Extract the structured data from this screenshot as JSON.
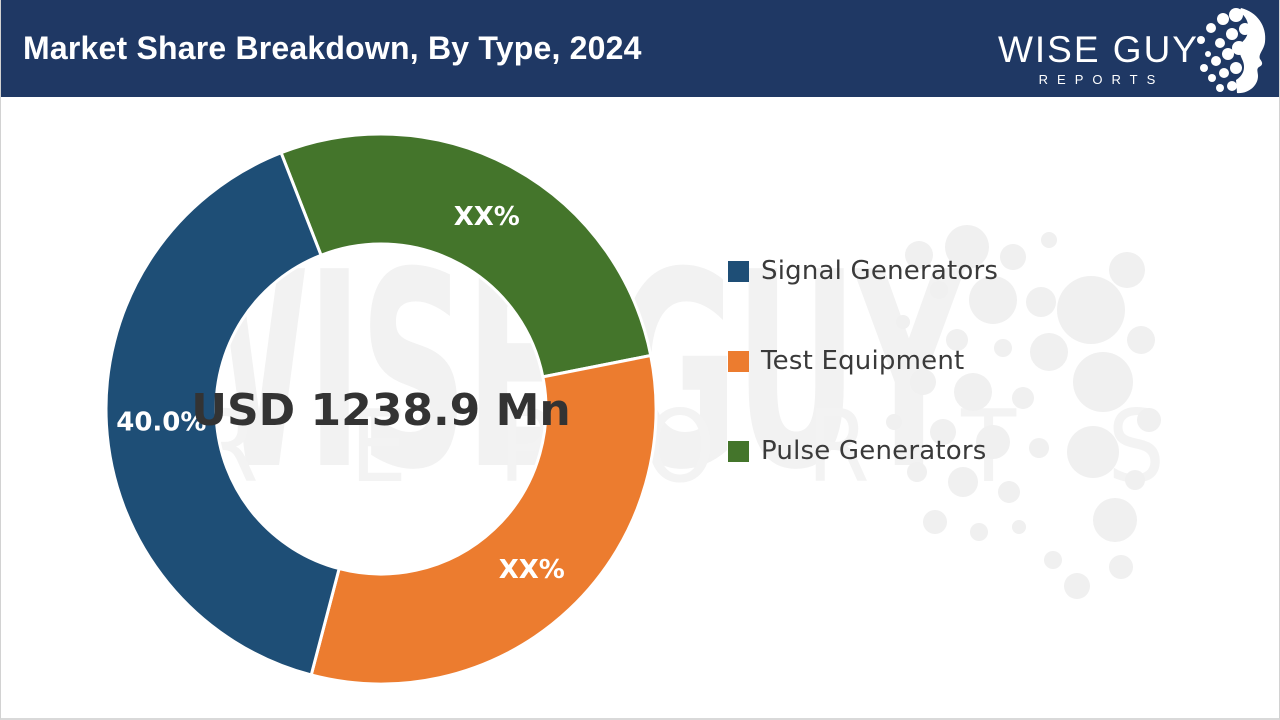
{
  "header": {
    "title": "Market Share Breakdown, By Type, 2024",
    "logo": {
      "line1": "WISE GUY",
      "line2": "REPORTS",
      "face_icon": "wiseguy-face-icon"
    },
    "background_color": "#1f3864"
  },
  "watermark": {
    "line1": "WISE GUY",
    "line2": "R E P O R T S",
    "face_icon": "wiseguy-face-watermark-icon",
    "color": "#f2f2f2"
  },
  "chart_data": {
    "type": "pie",
    "variant": "donut",
    "title": "Market Share Breakdown, By Type, 2024",
    "center_label": "USD 1238.9 Mn",
    "segments": [
      {
        "name": "Signal Generators",
        "value_label": "40.0%",
        "share_pct": 40.0,
        "color": "#1e4e76"
      },
      {
        "name": "Test Equipment",
        "value_label": "XX%",
        "share_pct": 32.2,
        "color": "#ec7c2f"
      },
      {
        "name": "Pulse Generators",
        "value_label": "XX%",
        "share_pct": 27.8,
        "color": "#44752b"
      }
    ],
    "start_angle_deg": 111.3,
    "draw_order_clockwise": [
      2,
      1,
      0
    ],
    "inner_radius_frac": 0.6,
    "label_radius_frac": 0.8,
    "legend_position": "right",
    "label_color": "#ffffff",
    "center_label_color": "#333333"
  }
}
